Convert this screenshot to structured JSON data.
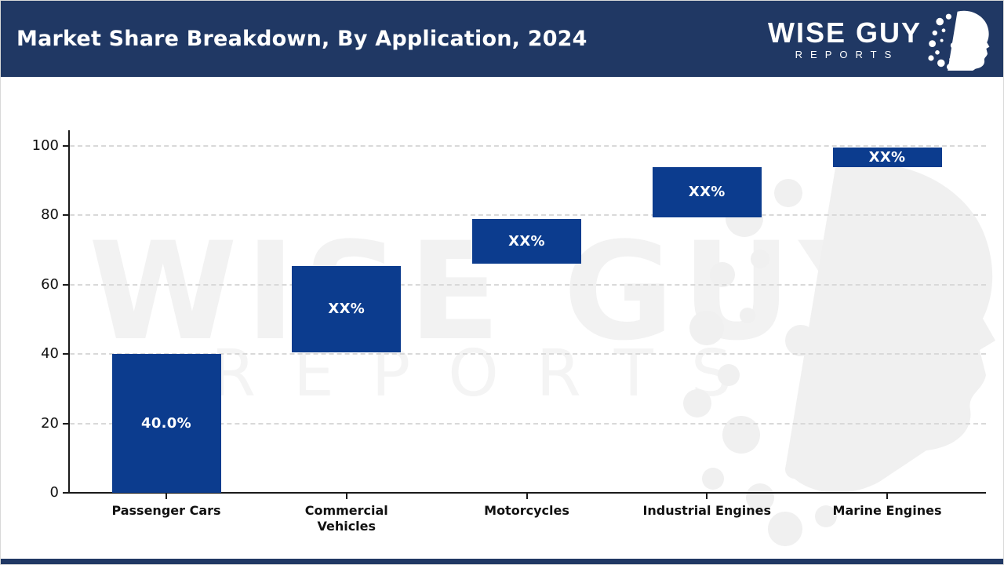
{
  "header": {
    "title": "Market Share Breakdown, By Application, 2024",
    "logo": {
      "line1": "WISE GUY",
      "line2": "REPORTS"
    }
  },
  "watermark": {
    "line1": "WISE GUY",
    "line2": "REPORTS"
  },
  "colors": {
    "header_bg": "#203864",
    "bar": "#0c3c8e",
    "grid": "#d9d9d9",
    "axis": "#1a1a1a",
    "watermark": "#f2f2f2"
  },
  "chart_data": {
    "type": "bar",
    "subtype": "waterfall",
    "title": "Market Share Breakdown, By Application, 2024",
    "xlabel": "",
    "ylabel": "",
    "ylim": [
      0,
      100
    ],
    "yticks": [
      0,
      20,
      40,
      60,
      80,
      100
    ],
    "grid": "dashed-horizontal",
    "legend": "none",
    "bar_color": "#0c3c8e",
    "categories": [
      "Passenger Cars",
      "Commercial\nVehicles",
      "Motorcycles",
      "Industrial Engines",
      "Marine Engines"
    ],
    "segments": [
      {
        "category": "Passenger Cars",
        "start": 0,
        "end": 40,
        "value_label": "40.0%"
      },
      {
        "category": "Commercial Vehicles",
        "start": 40.5,
        "end": 65.5,
        "value_label": "XX%"
      },
      {
        "category": "Motorcycles",
        "start": 66,
        "end": 79,
        "value_label": "XX%"
      },
      {
        "category": "Industrial Engines",
        "start": 79.5,
        "end": 94,
        "value_label": "XX%"
      },
      {
        "category": "Marine Engines",
        "start": 94,
        "end": 99.5,
        "value_label": "XX%"
      }
    ]
  }
}
